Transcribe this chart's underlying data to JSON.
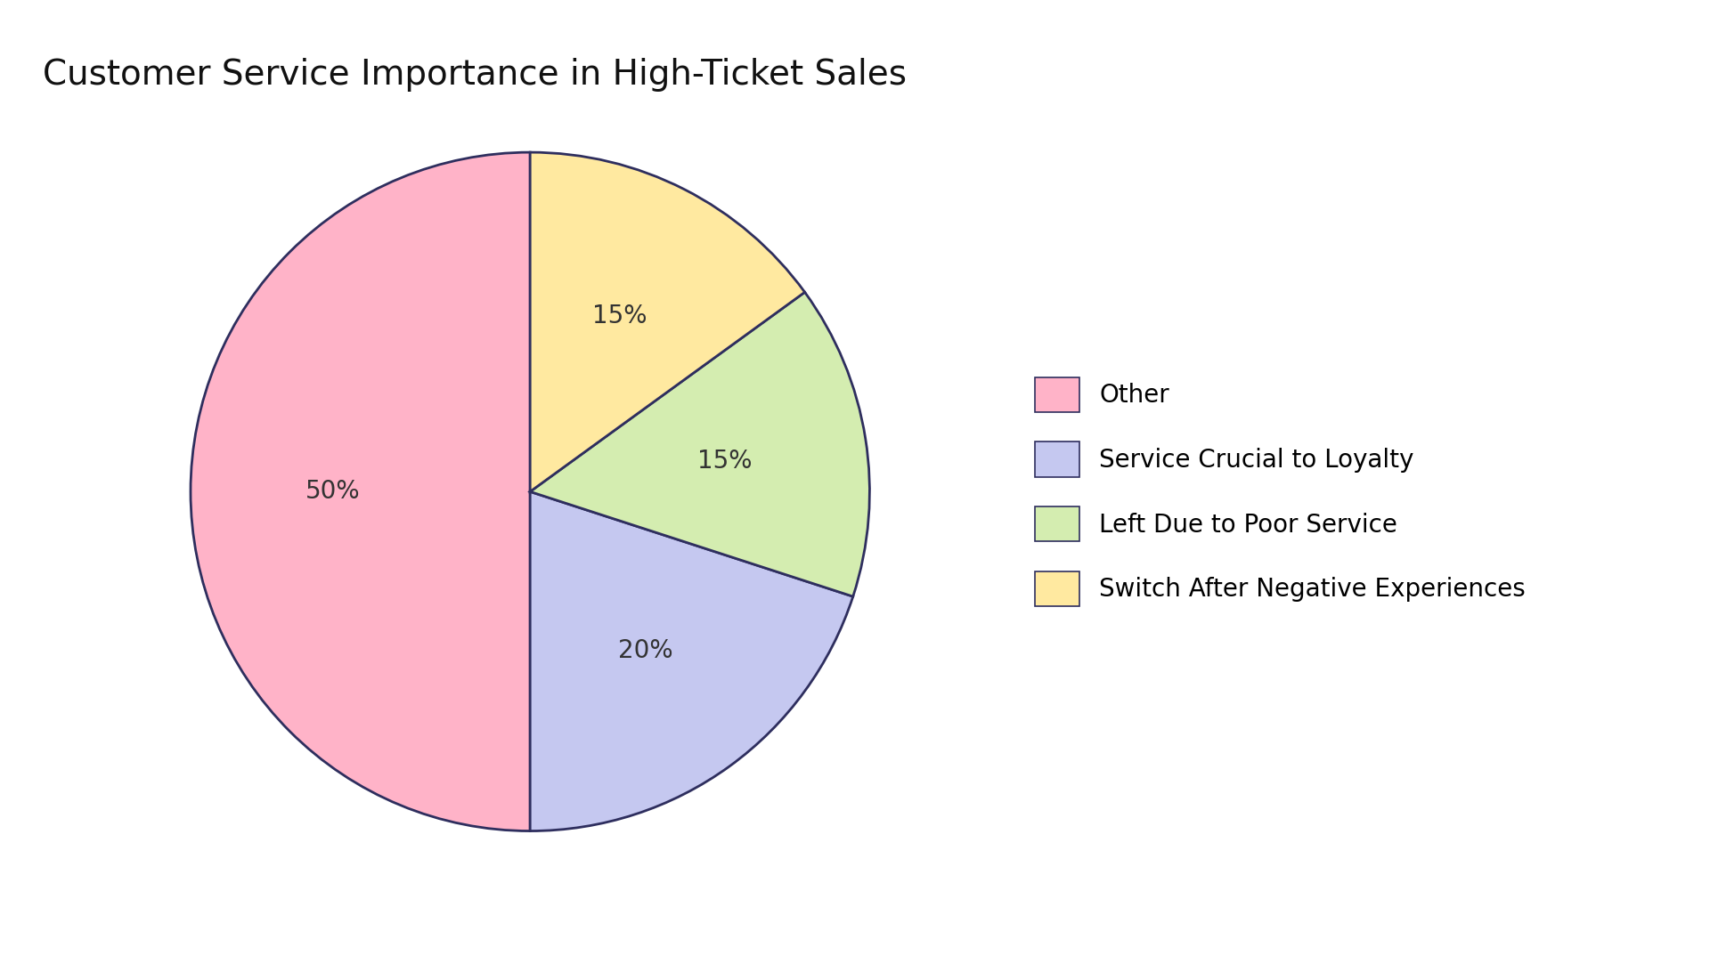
{
  "title": "Customer Service Importance in High-Ticket Sales",
  "slices": [
    {
      "label": "Other",
      "value": 50,
      "color": "#FFB3C8",
      "pct_label": "50%"
    },
    {
      "label": "Service Crucial to Loyalty",
      "value": 20,
      "color": "#C5C8F0",
      "pct_label": "20%"
    },
    {
      "label": "Left Due to Poor Service",
      "value": 15,
      "color": "#D4EDB0",
      "pct_label": "15%"
    },
    {
      "label": "Switch After Negative Experiences",
      "value": 15,
      "color": "#FFE9A0",
      "pct_label": "15%"
    }
  ],
  "edge_color": "#2E2E5E",
  "edge_linewidth": 2.0,
  "title_fontsize": 28,
  "label_fontsize": 20,
  "legend_fontsize": 20,
  "background_color": "#FFFFFF",
  "startangle": 90
}
